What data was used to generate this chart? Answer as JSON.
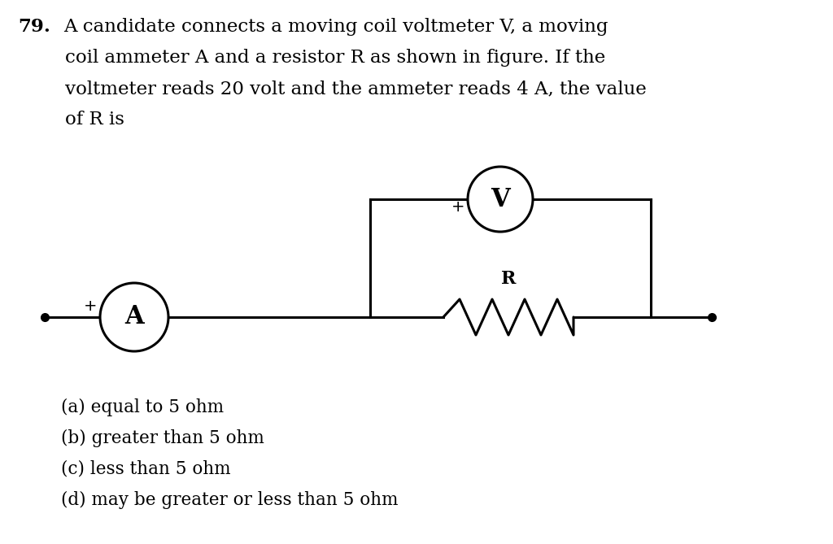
{
  "background_color": "#ffffff",
  "question_number": "79.",
  "question_text_lines": [
    "A candidate connects a moving coil voltmeter V, a moving",
    "coil ammeter A and a resistor R as shown in figure. If the",
    "voltmeter reads 20 volt and the ammeter reads 4 A, the value",
    "of R is"
  ],
  "options": [
    "(a) equal to 5 ohm",
    "(b) greater than 5 ohm",
    "(c) less than 5 ohm",
    "(d) may be greater or less than 5 ohm"
  ],
  "wire_color": "#000000",
  "wire_lw": 2.2,
  "text_color": "#000000",
  "question_fontsize": 16.5,
  "option_fontsize": 15.5,
  "circuit_label_fontsize": 16
}
